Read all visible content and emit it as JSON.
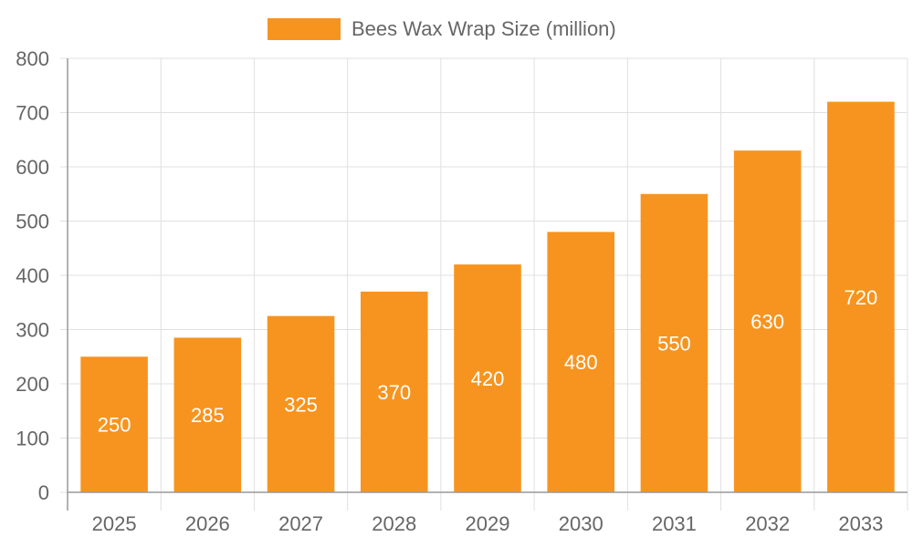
{
  "chart_data": {
    "type": "bar",
    "categories": [
      "2025",
      "2026",
      "2027",
      "2028",
      "2029",
      "2030",
      "2031",
      "2032",
      "2033"
    ],
    "series": [
      {
        "name": "Bees Wax Wrap Size (million)",
        "values": [
          250,
          285,
          325,
          370,
          420,
          480,
          550,
          630,
          720
        ],
        "color": "#F7941F"
      }
    ],
    "ylim": [
      0,
      800
    ],
    "yticks": [
      0,
      100,
      200,
      300,
      400,
      500,
      600,
      700,
      800
    ],
    "grid": true,
    "legend": "top-center",
    "data_labels": "inside-bar-center"
  },
  "colors": {
    "grid": "#e0e0e0",
    "axis": "#999999",
    "tick_text": "#666666",
    "data_label_text": "#ffffff"
  }
}
